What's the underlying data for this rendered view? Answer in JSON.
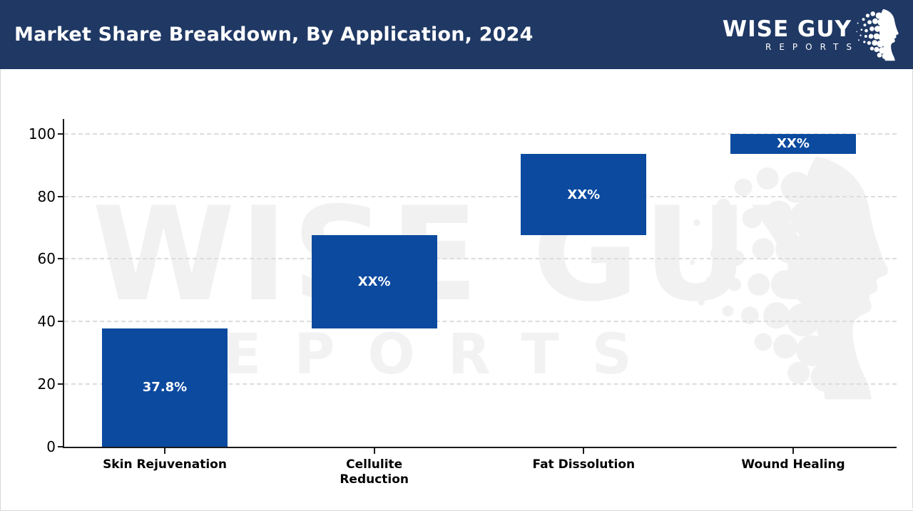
{
  "header": {
    "title": "Market Share Breakdown, By Application, 2024",
    "bg_color": "#1F3864",
    "logo": {
      "wordmark": "WISE GUY",
      "subtitle": "REPORTS"
    }
  },
  "watermark": {
    "line1": "WISE GUY",
    "line2": "REPORTS"
  },
  "chart_data": {
    "type": "bar",
    "subtype": "waterfall",
    "title": "Market Share Breakdown, By Application, 2024",
    "categories": [
      "Skin Rejuvenation",
      "Cellulite\nReduction",
      "Fat Dissolution",
      "Wound Healing"
    ],
    "bars": [
      {
        "category": "Skin Rejuvenation",
        "label": "37.8%",
        "start": 0,
        "end": 37.8
      },
      {
        "category": "Cellulite Reduction",
        "label": "XX%",
        "start": 37.8,
        "end": 67.5
      },
      {
        "category": "Fat Dissolution",
        "label": "XX%",
        "start": 67.5,
        "end": 93.5
      },
      {
        "category": "Wound Healing",
        "label": "XX%",
        "start": 93.5,
        "end": 100
      }
    ],
    "yticks": [
      0,
      20,
      40,
      60,
      80,
      100
    ],
    "ylim": [
      0,
      100
    ],
    "bar_color": "#0B4A9F",
    "grid": "horizontal-dashed",
    "gridline_color": "#dcdcdc",
    "axis_color": "#1a1a1a"
  }
}
